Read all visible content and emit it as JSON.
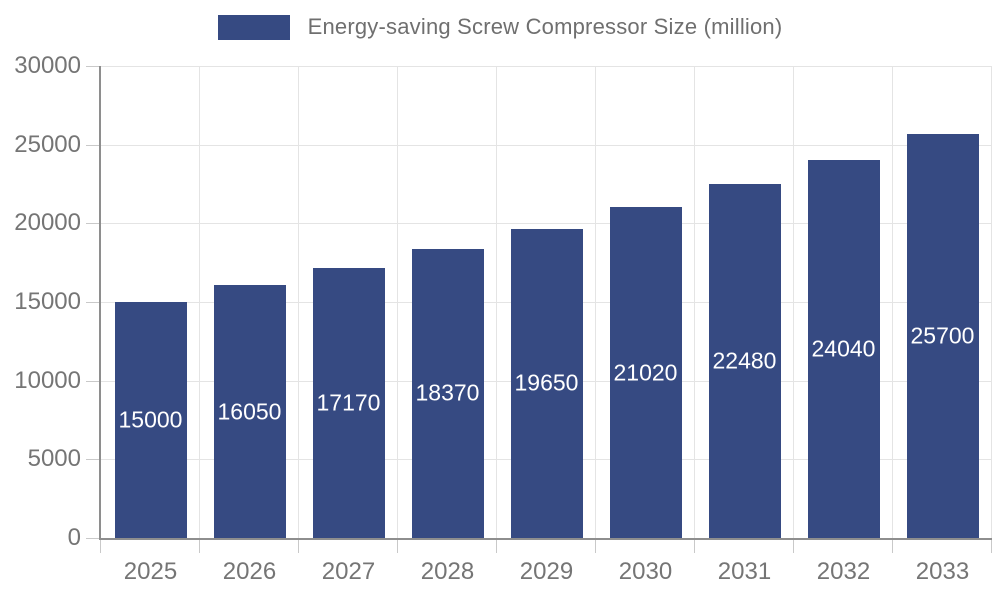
{
  "chart_data": {
    "type": "bar",
    "title": "Energy-saving Screw Compressor Size (million)",
    "categories": [
      "2025",
      "2026",
      "2027",
      "2028",
      "2029",
      "2030",
      "2031",
      "2032",
      "2033"
    ],
    "values": [
      15000,
      16050,
      17170,
      18370,
      19650,
      21020,
      22480,
      24040,
      25700
    ],
    "value_labels": [
      "15000",
      "16050",
      "17170",
      "18370",
      "19650",
      "21020",
      "22480",
      "24040",
      "25700"
    ],
    "xlabel": "",
    "ylabel": "",
    "ylim": [
      0,
      30000
    ],
    "yticks": [
      0,
      5000,
      10000,
      15000,
      20000,
      25000,
      30000
    ],
    "ytick_labels": [
      "0",
      "5000",
      "10000",
      "15000",
      "20000",
      "25000",
      "30000"
    ],
    "grid": true,
    "legend_position": "top",
    "colors": {
      "bar": "#364a82",
      "axis_line": "#8e8e8e",
      "gridline": "#e4e4e4",
      "tick": "#c9c9c9",
      "axis_text": "#757575",
      "legend_text": "#6f6f6f",
      "bar_label_text": "#ffffff",
      "background": "#ffffff"
    }
  }
}
